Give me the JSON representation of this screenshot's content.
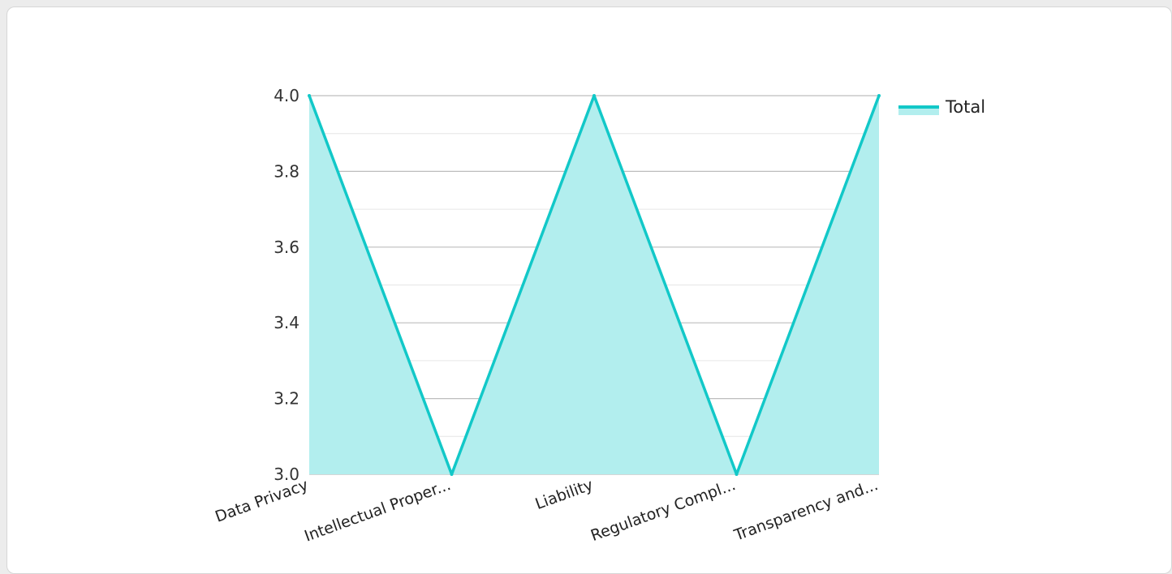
{
  "chart_data": {
    "type": "area",
    "categories": [
      "Data Privacy",
      "Intellectual Proper...",
      "Liability",
      "Regulatory Compl...",
      "Transparency and..."
    ],
    "series": [
      {
        "name": "Total",
        "values": [
          4.0,
          3.0,
          4.0,
          3.0,
          4.0
        ]
      }
    ],
    "ylim": [
      3.0,
      4.0
    ],
    "yticks": [
      "3.0",
      "3.2",
      "3.4",
      "3.6",
      "3.8",
      "4.0"
    ],
    "grid": true,
    "legend_position": "top-right",
    "colors": {
      "line": "#12c8c8",
      "fill": "#b2eeee",
      "grid": "#bdbdbd",
      "minor_grid": "#e6e6e6"
    }
  }
}
